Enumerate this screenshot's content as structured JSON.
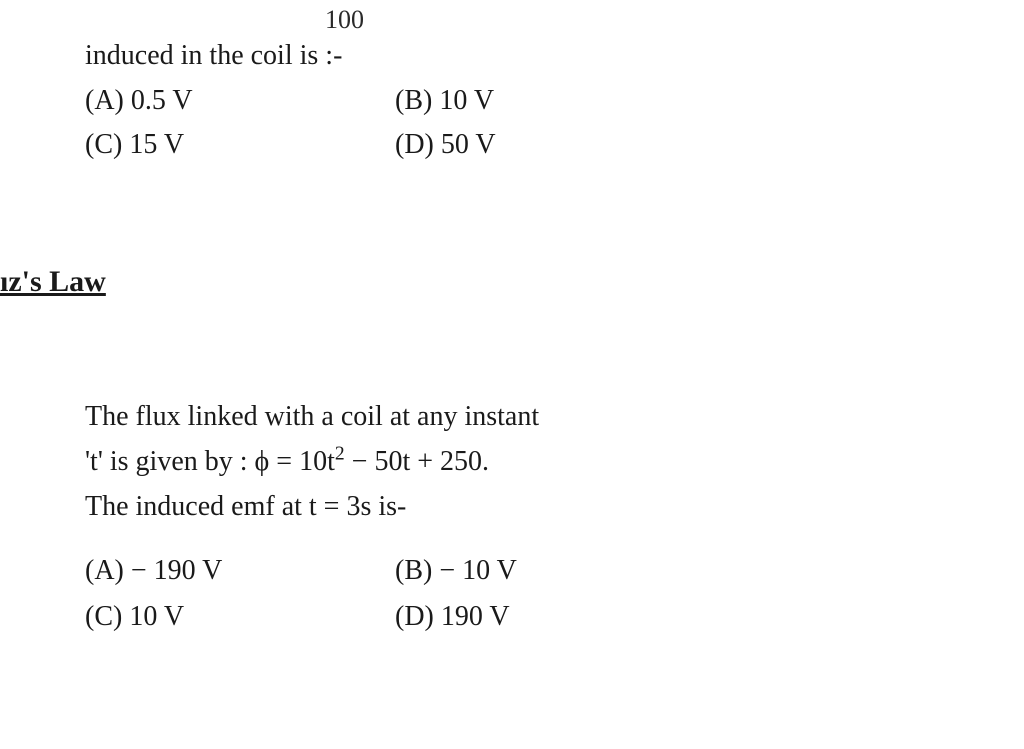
{
  "topFragment": "",
  "topNumber": "100",
  "q1": {
    "stem": "induced in the coil is :-",
    "options": {
      "a": "(A) 0.5 V",
      "b": "(B) 10 V",
      "c": "(C) 15 V",
      "d": "(D) 50 V"
    }
  },
  "lawHeading": "ız's Law",
  "q2": {
    "line1": "The flux linked with a coil at any instant",
    "line2_prefix": "'t' is given by : ",
    "phi": "ϕ",
    "eq_part1": " = 10t",
    "sup": "2",
    "eq_part2": " − 50t + 250.",
    "line3": "The induced emf at t = 3s is-",
    "options": {
      "a": "(A) − 190 V",
      "b": "(B) − 10 V",
      "c": "(C) 10 V",
      "d": "(D) 190 V"
    }
  }
}
